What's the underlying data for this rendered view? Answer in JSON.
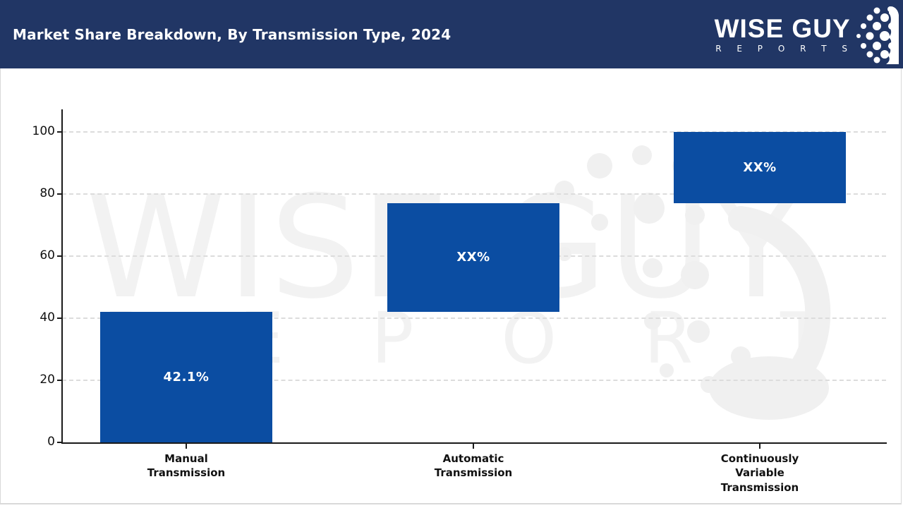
{
  "header": {
    "title": "Market Share Breakdown, By Transmission Type, 2024",
    "logo": {
      "line1": "WISE GUY",
      "line2": "R E P O R T S"
    }
  },
  "watermark": {
    "line1": "WISE GUY",
    "line2": "R E P O R T S"
  },
  "colors": {
    "header_bg": "#213665",
    "bar": "#0b4da2",
    "bar_label": "#ffffff",
    "grid": "#dcdcdc",
    "axis": "#1a1a1a",
    "watermark": "#f2f2f2"
  },
  "chart_data": {
    "type": "bar",
    "subtype": "stacked-waterfall",
    "title": "Market Share Breakdown, By Transmission Type, 2024",
    "xlabel": "",
    "ylabel": "",
    "categories": [
      "Manual\nTransmission",
      "Automatic\nTransmission",
      "Continuously\nVariable\nTransmission"
    ],
    "bars": [
      {
        "category": "Manual Transmission",
        "label": "42.1%",
        "start": 0,
        "end": 42.1
      },
      {
        "category": "Automatic Transmission",
        "label": "XX%",
        "start": 42.1,
        "end": 77.1
      },
      {
        "category": "Continuously Variable Transmission",
        "label": "XX%",
        "start": 77.1,
        "end": 100
      }
    ],
    "yticks": [
      0,
      20,
      40,
      60,
      80,
      100
    ],
    "ylim": [
      0,
      107
    ],
    "grid": "horizontal-dashed",
    "legend": "none"
  }
}
